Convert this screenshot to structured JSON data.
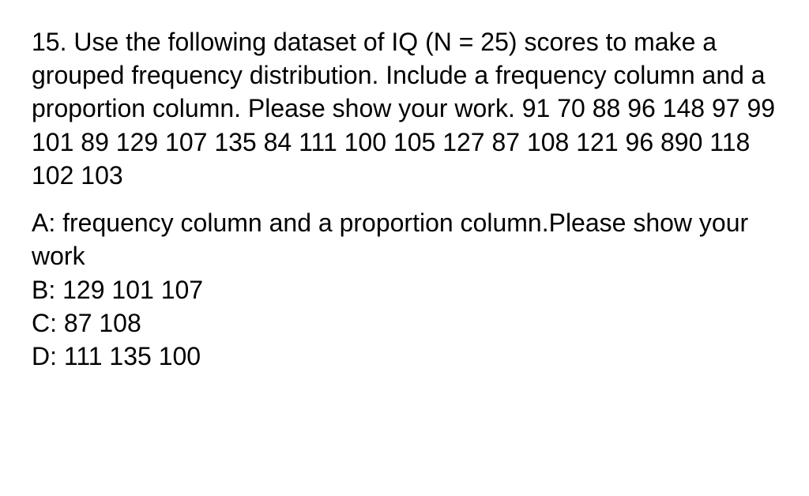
{
  "question": {
    "number": "15.",
    "text": "Use the following dataset of IQ (N = 25) scores to make a grouped frequency distribution. Include a frequency column and a proportion column. Please show your work. 91 70 88 96 148 97 99 101 89 129 107 135 84 111 100 105 127 87 108 121 96 890 118 102 103"
  },
  "answers": {
    "a": {
      "label": "A:",
      "text": "frequency column and a proportion column.Please show your work"
    },
    "b": {
      "label": "B:",
      "text": "129 101 107"
    },
    "c": {
      "label": "C:",
      "text": "87 108"
    },
    "d": {
      "label": "D:",
      "text": "111 135 100"
    }
  },
  "style": {
    "font_family": "Arial, Helvetica, sans-serif",
    "font_size_pt": 24,
    "text_color": "#000000",
    "background_color": "#ffffff"
  }
}
